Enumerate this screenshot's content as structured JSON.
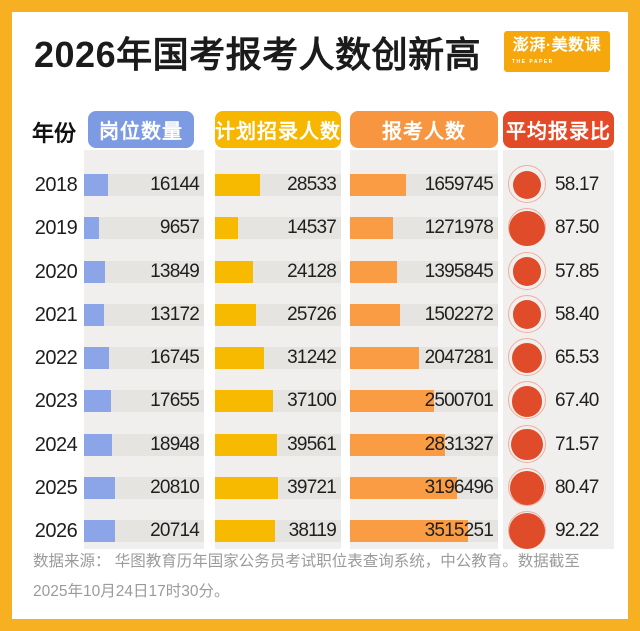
{
  "frame_color": "#F7B021",
  "header": {
    "title": "2026年国考报考人数创新高",
    "logo": {
      "main": "澎湃·美数课",
      "sub": "THE PAPER",
      "bg": "#F5A70D"
    }
  },
  "table": {
    "year_header": "年份",
    "columns": [
      {
        "id": "positions",
        "label": "岗位数量",
        "header_bg": "#7D9BE3",
        "bar_color": "#8CA5E9",
        "scale_max": 80000
      },
      {
        "id": "planned",
        "label": "计划招录人数",
        "header_bg": "#F7B600",
        "bar_color": "#F8BA00",
        "scale_max": 80000
      },
      {
        "id": "applicants",
        "label": "报考人数",
        "header_bg": "#F79540",
        "bar_color": "#F99C44",
        "scale_max": 4400000
      },
      {
        "id": "ratio",
        "label": "平均报录比",
        "header_bg": "#E24A28",
        "dot_color": "#E04C2A",
        "ring_color": "#EFAF9E",
        "max_value": 92.22,
        "max_diameter": 36
      }
    ],
    "rows": [
      {
        "year": "2018",
        "positions": 16144,
        "planned": 28533,
        "applicants": 1659745,
        "ratio": 58.17
      },
      {
        "year": "2019",
        "positions": 9657,
        "planned": 14537,
        "applicants": 1271978,
        "ratio": 87.5
      },
      {
        "year": "2020",
        "positions": 13849,
        "planned": 24128,
        "applicants": 1395845,
        "ratio": 57.85
      },
      {
        "year": "2021",
        "positions": 13172,
        "planned": 25726,
        "applicants": 1502272,
        "ratio": 58.4
      },
      {
        "year": "2022",
        "positions": 16745,
        "planned": 31242,
        "applicants": 2047281,
        "ratio": 65.53
      },
      {
        "year": "2023",
        "positions": 17655,
        "planned": 37100,
        "applicants": 2500701,
        "ratio": 67.4
      },
      {
        "year": "2024",
        "positions": 18948,
        "planned": 39561,
        "applicants": 2831327,
        "ratio": 71.57
      },
      {
        "year": "2025",
        "positions": 20810,
        "planned": 39721,
        "applicants": 3196496,
        "ratio": 80.47
      },
      {
        "year": "2026",
        "positions": 20714,
        "planned": 38119,
        "applicants": 3515251,
        "ratio": 92.22
      }
    ]
  },
  "footer": {
    "source": "数据来源： 华图教育历年国家公务员考试职位表查询系统，中公教育。数据截至2025年10月24日17时30分。"
  },
  "chart_data": {
    "type": "table",
    "title": "2026年国考报考人数创新高",
    "categories": [
      "2018",
      "2019",
      "2020",
      "2021",
      "2022",
      "2023",
      "2024",
      "2025",
      "2026"
    ],
    "series": [
      {
        "name": "岗位数量",
        "type": "bar",
        "values": [
          16144,
          9657,
          13849,
          13172,
          16745,
          17655,
          18948,
          20810,
          20714
        ],
        "axis_max": 80000
      },
      {
        "name": "计划招录人数",
        "type": "bar",
        "values": [
          28533,
          14537,
          24128,
          25726,
          31242,
          37100,
          39561,
          39721,
          38119
        ],
        "axis_max": 80000
      },
      {
        "name": "报考人数",
        "type": "bar",
        "values": [
          1659745,
          1271978,
          1395845,
          1502272,
          2047281,
          2500701,
          2831327,
          3196496,
          3515251
        ],
        "axis_max": 4400000
      },
      {
        "name": "平均报录比",
        "type": "bubble",
        "values": [
          58.17,
          87.5,
          57.85,
          58.4,
          65.53,
          67.4,
          71.57,
          80.47,
          92.22
        ]
      }
    ],
    "legend_position": "none",
    "grid": false,
    "source_note": "数据来源： 华图教育历年国家公务员考试职位表查询系统，中公教育。数据截至2025年10月24日17时30分。"
  }
}
